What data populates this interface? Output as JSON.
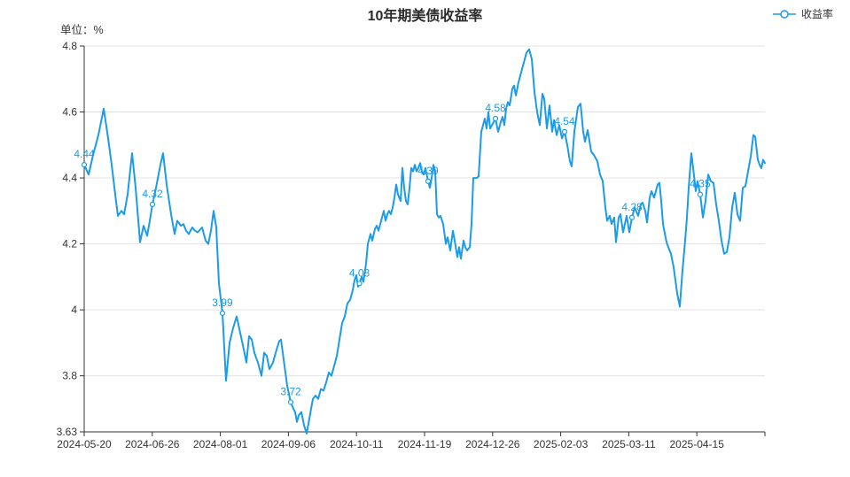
{
  "colors": {
    "line": "#1b9bea",
    "data_label": "#1b9bea",
    "axis": "#333333",
    "grid": "#e3e3e3",
    "tick_text": "#333333",
    "title_text": "#2b2b2b",
    "background": "#ffffff",
    "marker_fill": "#ffffff"
  },
  "chart_data": {
    "type": "line",
    "title": "10年期美债收益率",
    "unit_label": "单位：%",
    "legend_position": "top-right",
    "grid": true,
    "y_axis": {
      "min": 3.63,
      "max": 4.8,
      "tick_values": [
        4.8,
        4.6,
        4.4,
        4.2,
        4,
        3.8,
        3.63
      ],
      "tick_labels": [
        "4.8",
        "4.6",
        "4.4",
        "4.2",
        "4",
        "3.8",
        "3.63"
      ]
    },
    "x_axis": {
      "type": "time",
      "tick_labels": [
        "2024-05-20",
        "2024-06-26",
        "2024-08-01",
        "2024-09-06",
        "2024-10-11",
        "2024-11-19",
        "2024-12-26",
        "2025-02-03",
        "2025-03-11",
        "2025-04-15"
      ],
      "extra_end_tick": true
    },
    "series": [
      {
        "name": "收益率",
        "symbol": "empty-circle",
        "labeled_points": [
          {
            "date": "2024-05-20",
            "t": 0.0,
            "value": 4.44,
            "label": "4.44"
          },
          {
            "date": "2024-06-26",
            "t": 0.1003,
            "value": 4.32,
            "label": "4.32"
          },
          {
            "date": "2024-08-01",
            "t": 0.2031,
            "value": 3.99,
            "label": "3.99"
          },
          {
            "date": "2024-09-06",
            "t": 0.3034,
            "value": 3.72,
            "label": "3.72"
          },
          {
            "date": "2024-10-11",
            "t": 0.4043,
            "value": 4.08,
            "label": "4.08"
          },
          {
            "date": "2024-11-19",
            "t": 0.5052,
            "value": 4.39,
            "label": "4.39"
          },
          {
            "date": "2024-12-26",
            "t": 0.6042,
            "value": 4.58,
            "label": "4.58"
          },
          {
            "date": "2025-02-03",
            "t": 0.7057,
            "value": 4.54,
            "label": "4.54"
          },
          {
            "date": "2025-03-11",
            "t": 0.8047,
            "value": 4.28,
            "label": "4.28"
          },
          {
            "date": "2025-04-15",
            "t": 0.9049,
            "value": 4.35,
            "label": "4.35"
          }
        ],
        "points": [
          [
            0,
            4.44
          ],
          [
            0.0065,
            4.41
          ],
          [
            0.013,
            4.47
          ],
          [
            0.0208,
            4.53
          ],
          [
            0.0286,
            4.61
          ],
          [
            0.0352,
            4.52
          ],
          [
            0.0404,
            4.44
          ],
          [
            0.0456,
            4.35
          ],
          [
            0.0495,
            4.285
          ],
          [
            0.0547,
            4.3
          ],
          [
            0.0586,
            4.29
          ],
          [
            0.0638,
            4.35
          ],
          [
            0.0703,
            4.475
          ],
          [
            0.0755,
            4.37
          ],
          [
            0.082,
            4.205
          ],
          [
            0.0872,
            4.255
          ],
          [
            0.0924,
            4.225
          ],
          [
            0.0963,
            4.27
          ],
          [
            0.1003,
            4.32
          ],
          [
            0.1055,
            4.37
          ],
          [
            0.112,
            4.44
          ],
          [
            0.1159,
            4.475
          ],
          [
            0.1211,
            4.38
          ],
          [
            0.1276,
            4.29
          ],
          [
            0.1328,
            4.23
          ],
          [
            0.1367,
            4.27
          ],
          [
            0.1419,
            4.255
          ],
          [
            0.1458,
            4.26
          ],
          [
            0.1497,
            4.24
          ],
          [
            0.1536,
            4.23
          ],
          [
            0.1589,
            4.25
          ],
          [
            0.1628,
            4.24
          ],
          [
            0.1667,
            4.235
          ],
          [
            0.1732,
            4.25
          ],
          [
            0.1784,
            4.21
          ],
          [
            0.1823,
            4.2
          ],
          [
            0.1862,
            4.24
          ],
          [
            0.1901,
            4.3
          ],
          [
            0.194,
            4.25
          ],
          [
            0.1979,
            4.08
          ],
          [
            0.2031,
            3.99
          ],
          [
            0.2083,
            3.785
          ],
          [
            0.2135,
            3.9
          ],
          [
            0.2188,
            3.945
          ],
          [
            0.224,
            3.98
          ],
          [
            0.2292,
            3.93
          ],
          [
            0.2344,
            3.88
          ],
          [
            0.2383,
            3.84
          ],
          [
            0.2422,
            3.92
          ],
          [
            0.2461,
            3.91
          ],
          [
            0.25,
            3.87
          ],
          [
            0.2552,
            3.84
          ],
          [
            0.2604,
            3.8
          ],
          [
            0.2643,
            3.87
          ],
          [
            0.2682,
            3.86
          ],
          [
            0.2721,
            3.82
          ],
          [
            0.2773,
            3.84
          ],
          [
            0.2812,
            3.87
          ],
          [
            0.2865,
            3.905
          ],
          [
            0.2891,
            3.91
          ],
          [
            0.2943,
            3.83
          ],
          [
            0.2982,
            3.77
          ],
          [
            0.3034,
            3.72
          ],
          [
            0.3073,
            3.7
          ],
          [
            0.3099,
            3.69
          ],
          [
            0.3125,
            3.66
          ],
          [
            0.3151,
            3.68
          ],
          [
            0.319,
            3.69
          ],
          [
            0.3229,
            3.65
          ],
          [
            0.3268,
            3.625
          ],
          [
            0.3307,
            3.67
          ],
          [
            0.3359,
            3.73
          ],
          [
            0.3398,
            3.74
          ],
          [
            0.3438,
            3.73
          ],
          [
            0.3477,
            3.76
          ],
          [
            0.3516,
            3.755
          ],
          [
            0.3555,
            3.78
          ],
          [
            0.3594,
            3.81
          ],
          [
            0.3633,
            3.8
          ],
          [
            0.3672,
            3.83
          ],
          [
            0.3711,
            3.86
          ],
          [
            0.375,
            3.91
          ],
          [
            0.3789,
            3.96
          ],
          [
            0.3828,
            3.98
          ],
          [
            0.3867,
            4.02
          ],
          [
            0.3906,
            4.03
          ],
          [
            0.3945,
            4.06
          ],
          [
            0.3971,
            4.09
          ],
          [
            0.3997,
            4.105
          ],
          [
            0.4023,
            4.07
          ],
          [
            0.4043,
            4.08
          ],
          [
            0.4075,
            4.1
          ],
          [
            0.4102,
            4.085
          ],
          [
            0.4141,
            4.14
          ],
          [
            0.4167,
            4.2
          ],
          [
            0.4206,
            4.23
          ],
          [
            0.4232,
            4.21
          ],
          [
            0.4271,
            4.245
          ],
          [
            0.4297,
            4.255
          ],
          [
            0.4323,
            4.24
          ],
          [
            0.4349,
            4.26
          ],
          [
            0.4375,
            4.28
          ],
          [
            0.4401,
            4.3
          ],
          [
            0.4427,
            4.27
          ],
          [
            0.4453,
            4.29
          ],
          [
            0.4479,
            4.3
          ],
          [
            0.4505,
            4.29
          ],
          [
            0.4531,
            4.31
          ],
          [
            0.4557,
            4.34
          ],
          [
            0.4583,
            4.38
          ],
          [
            0.4609,
            4.35
          ],
          [
            0.4648,
            4.33
          ],
          [
            0.4674,
            4.43
          ],
          [
            0.47,
            4.37
          ],
          [
            0.4727,
            4.33
          ],
          [
            0.4753,
            4.32
          ],
          [
            0.4779,
            4.37
          ],
          [
            0.4805,
            4.43
          ],
          [
            0.4831,
            4.42
          ],
          [
            0.4857,
            4.44
          ],
          [
            0.4883,
            4.42
          ],
          [
            0.4909,
            4.43
          ],
          [
            0.4935,
            4.445
          ],
          [
            0.4961,
            4.42
          ],
          [
            0.4987,
            4.41
          ],
          [
            0.5013,
            4.43
          ],
          [
            0.5052,
            4.39
          ],
          [
            0.5078,
            4.37
          ],
          [
            0.5104,
            4.4
          ],
          [
            0.513,
            4.44
          ],
          [
            0.5156,
            4.42
          ],
          [
            0.5182,
            4.29
          ],
          [
            0.5208,
            4.28
          ],
          [
            0.5234,
            4.285
          ],
          [
            0.5273,
            4.26
          ],
          [
            0.5312,
            4.2
          ],
          [
            0.5339,
            4.22
          ],
          [
            0.5378,
            4.18
          ],
          [
            0.5417,
            4.24
          ],
          [
            0.5443,
            4.21
          ],
          [
            0.5482,
            4.16
          ],
          [
            0.5508,
            4.19
          ],
          [
            0.5534,
            4.155
          ],
          [
            0.5573,
            4.21
          ],
          [
            0.5599,
            4.19
          ],
          [
            0.5625,
            4.18
          ],
          [
            0.5664,
            4.19
          ],
          [
            0.569,
            4.26
          ],
          [
            0.5716,
            4.4
          ],
          [
            0.5768,
            4.4
          ],
          [
            0.5794,
            4.405
          ],
          [
            0.5833,
            4.54
          ],
          [
            0.5859,
            4.56
          ],
          [
            0.5885,
            4.58
          ],
          [
            0.5911,
            4.55
          ],
          [
            0.5938,
            4.6
          ],
          [
            0.5964,
            4.55
          ],
          [
            0.6003,
            4.565
          ],
          [
            0.6042,
            4.58
          ],
          [
            0.6081,
            4.54
          ],
          [
            0.612,
            4.57
          ],
          [
            0.6146,
            4.585
          ],
          [
            0.6172,
            4.56
          ],
          [
            0.6198,
            4.61
          ],
          [
            0.6224,
            4.63
          ],
          [
            0.625,
            4.62
          ],
          [
            0.6289,
            4.67
          ],
          [
            0.6315,
            4.68
          ],
          [
            0.6341,
            4.65
          ],
          [
            0.638,
            4.69
          ],
          [
            0.6419,
            4.72
          ],
          [
            0.6458,
            4.75
          ],
          [
            0.6497,
            4.78
          ],
          [
            0.6536,
            4.79
          ],
          [
            0.6576,
            4.76
          ],
          [
            0.6615,
            4.66
          ],
          [
            0.6654,
            4.6
          ],
          [
            0.6693,
            4.56
          ],
          [
            0.6732,
            4.655
          ],
          [
            0.6758,
            4.64
          ],
          [
            0.6797,
            4.55
          ],
          [
            0.6836,
            4.62
          ],
          [
            0.6875,
            4.54
          ],
          [
            0.6901,
            4.575
          ],
          [
            0.694,
            4.53
          ],
          [
            0.6979,
            4.56
          ],
          [
            0.7018,
            4.52
          ],
          [
            0.7057,
            4.54
          ],
          [
            0.7096,
            4.5
          ],
          [
            0.7135,
            4.45
          ],
          [
            0.7161,
            4.435
          ],
          [
            0.72,
            4.54
          ],
          [
            0.7252,
            4.615
          ],
          [
            0.7292,
            4.625
          ],
          [
            0.7331,
            4.54
          ],
          [
            0.7357,
            4.51
          ],
          [
            0.7396,
            4.545
          ],
          [
            0.7448,
            4.48
          ],
          [
            0.7487,
            4.47
          ],
          [
            0.7539,
            4.45
          ],
          [
            0.7578,
            4.41
          ],
          [
            0.7617,
            4.39
          ],
          [
            0.7656,
            4.31
          ],
          [
            0.7682,
            4.27
          ],
          [
            0.7721,
            4.285
          ],
          [
            0.7747,
            4.26
          ],
          [
            0.7786,
            4.28
          ],
          [
            0.7812,
            4.205
          ],
          [
            0.7852,
            4.28
          ],
          [
            0.7878,
            4.29
          ],
          [
            0.7917,
            4.235
          ],
          [
            0.7969,
            4.285
          ],
          [
            0.8008,
            4.235
          ],
          [
            0.8047,
            4.28
          ],
          [
            0.8086,
            4.31
          ],
          [
            0.8138,
            4.285
          ],
          [
            0.8177,
            4.32
          ],
          [
            0.8203,
            4.325
          ],
          [
            0.8242,
            4.3
          ],
          [
            0.8268,
            4.265
          ],
          [
            0.8307,
            4.34
          ],
          [
            0.8333,
            4.36
          ],
          [
            0.8372,
            4.34
          ],
          [
            0.8424,
            4.38
          ],
          [
            0.8451,
            4.385
          ],
          [
            0.8477,
            4.33
          ],
          [
            0.8503,
            4.26
          ],
          [
            0.8555,
            4.205
          ],
          [
            0.8581,
            4.19
          ],
          [
            0.862,
            4.17
          ],
          [
            0.8659,
            4.13
          ],
          [
            0.8685,
            4.09
          ],
          [
            0.8711,
            4.05
          ],
          [
            0.875,
            4.01
          ],
          [
            0.8789,
            4.12
          ],
          [
            0.8828,
            4.21
          ],
          [
            0.8854,
            4.28
          ],
          [
            0.888,
            4.37
          ],
          [
            0.8919,
            4.475
          ],
          [
            0.8945,
            4.43
          ],
          [
            0.8984,
            4.36
          ],
          [
            0.901,
            4.39
          ],
          [
            0.9049,
            4.35
          ],
          [
            0.9089,
            4.28
          ],
          [
            0.9128,
            4.33
          ],
          [
            0.9167,
            4.41
          ],
          [
            0.9206,
            4.39
          ],
          [
            0.9245,
            4.385
          ],
          [
            0.9284,
            4.32
          ],
          [
            0.9323,
            4.27
          ],
          [
            0.9362,
            4.21
          ],
          [
            0.9401,
            4.17
          ],
          [
            0.944,
            4.175
          ],
          [
            0.9479,
            4.22
          ],
          [
            0.9518,
            4.31
          ],
          [
            0.9557,
            4.355
          ],
          [
            0.9596,
            4.29
          ],
          [
            0.9635,
            4.27
          ],
          [
            0.9674,
            4.37
          ],
          [
            0.9714,
            4.375
          ],
          [
            0.9753,
            4.42
          ],
          [
            0.9792,
            4.465
          ],
          [
            0.9831,
            4.53
          ],
          [
            0.9857,
            4.525
          ],
          [
            0.9896,
            4.455
          ],
          [
            0.9922,
            4.44
          ],
          [
            0.9948,
            4.43
          ],
          [
            0.9974,
            4.455
          ],
          [
            1,
            4.445
          ]
        ]
      }
    ]
  }
}
